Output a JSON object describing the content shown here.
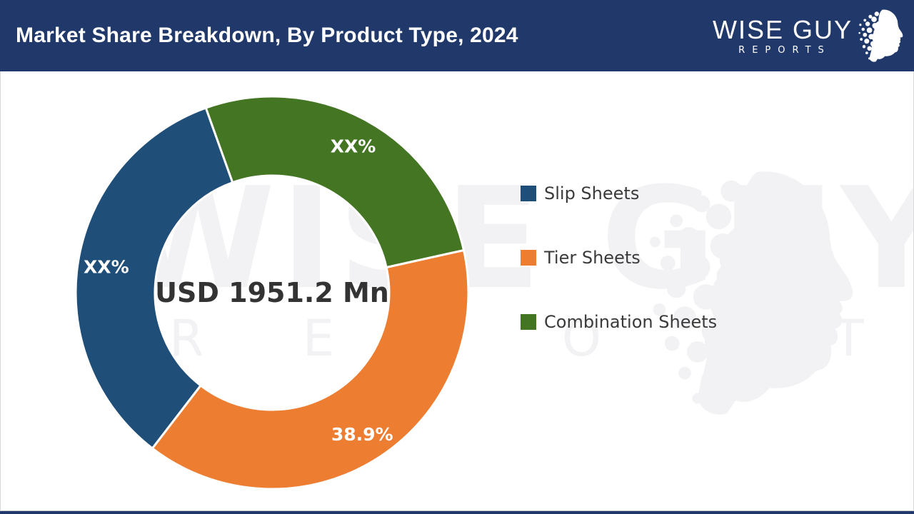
{
  "header": {
    "title": "Market Share Breakdown, By Product Type, 2024",
    "logo": {
      "line1": "WISE GUY",
      "line2": "REPORTS"
    }
  },
  "watermark": {
    "line1": "WISE GUY",
    "line2": "R E P O R T S"
  },
  "chart_data": {
    "type": "pie",
    "subtype": "donut",
    "title": "Market Share Breakdown, By Product Type, 2024",
    "center_label": "USD 1951.2 Mn",
    "legend_position": "right",
    "start_angle_deg": 109.7,
    "direction": "counterclockwise",
    "hole_ratio": 0.6,
    "categories": [
      "Slip Sheets",
      "Tier Sheets",
      "Combination Sheets"
    ],
    "series": [
      {
        "name": "Slip Sheets",
        "value_pct": 34.1,
        "display_label": "XX%",
        "color": "#1f4e79"
      },
      {
        "name": "Tier Sheets",
        "value_pct": 38.9,
        "display_label": "38.9%",
        "color": "#ed7d31"
      },
      {
        "name": "Combination Sheets",
        "value_pct": 27.0,
        "display_label": "XX%",
        "color": "#447523"
      }
    ]
  },
  "theme": {
    "header_bg": "#20386a",
    "footer_bg": "#20386a",
    "title_text": "#ffffff",
    "segment_border": "#ffffff",
    "center_text": "#333333",
    "legend_text": "#3a3a3a",
    "watermark_color": "#f2f2f4"
  }
}
